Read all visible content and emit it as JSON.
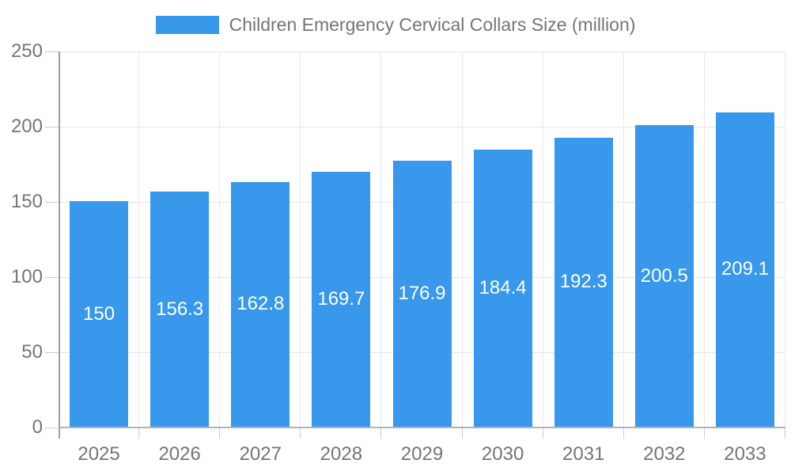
{
  "chart_data": {
    "type": "bar",
    "title": "Children Emergency Cervical Collars Size (million)",
    "categories": [
      "2025",
      "2026",
      "2027",
      "2028",
      "2029",
      "2030",
      "2031",
      "2032",
      "2033"
    ],
    "values": [
      150,
      156.3,
      162.8,
      169.7,
      176.9,
      184.4,
      192.3,
      200.5,
      209.1
    ],
    "value_labels": [
      "150",
      "156.3",
      "162.8",
      "169.7",
      "176.9",
      "184.4",
      "192.3",
      "200.5",
      "209.1"
    ],
    "xlabel": "",
    "ylabel": "",
    "ylim": [
      0,
      250
    ],
    "yticks": [
      0,
      50,
      100,
      150,
      200,
      250
    ],
    "grid": true,
    "legend_position": "top",
    "colors": {
      "bar": "#3898ec",
      "bar_label": "#ffffff",
      "axis_text": "#757575",
      "gridline": "#e6e6e6",
      "vgridline": "#e9e9e9",
      "x_axis_line": "#b3b3b3",
      "y_axis_line": "#9e9e9e",
      "tick": "#cccccc",
      "background": "#ffffff"
    }
  }
}
